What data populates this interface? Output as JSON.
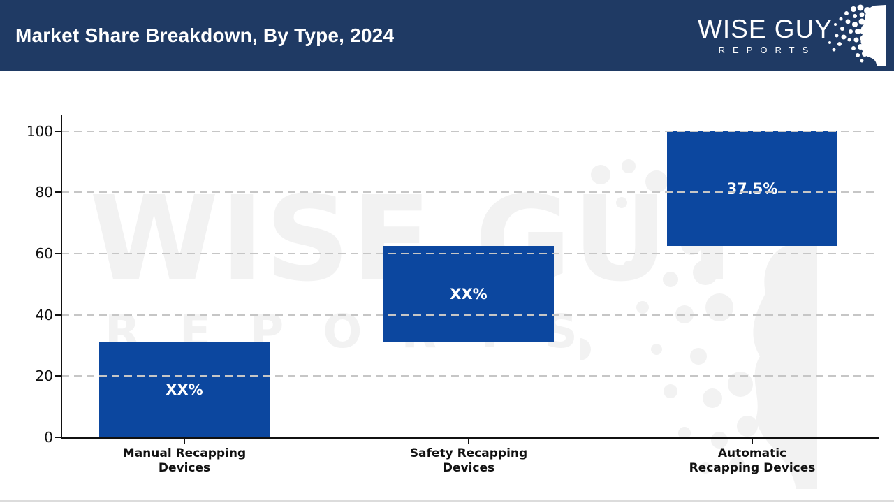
{
  "header": {
    "title": "Market Share Breakdown, By Type, 2024",
    "bg_color": "#1F3A64",
    "logo": {
      "line1": "WISE GUY",
      "line2": "REPORTS"
    }
  },
  "watermark": {
    "line1": "WISE GUY",
    "line2": "REPORTS"
  },
  "chart_data": {
    "type": "bar",
    "variant": "waterfall-stacked-breakdown",
    "title": "Market Share Breakdown, By Type, 2024",
    "categories": [
      "Manual Recapping Devices",
      "Safety Recapping Devices",
      "Automatic Recapping Devices"
    ],
    "category_lines": [
      [
        "Manual Recapping",
        "Devices"
      ],
      [
        "Safety Recapping",
        "Devices"
      ],
      [
        "Automatic",
        "Recapping Devices"
      ]
    ],
    "bars": [
      {
        "category": "Manual Recapping Devices",
        "start": 0,
        "end": 31.25,
        "label": "XX%"
      },
      {
        "category": "Safety Recapping Devices",
        "start": 31.25,
        "end": 62.5,
        "label": "XX%"
      },
      {
        "category": "Automatic Recapping Devices",
        "start": 62.5,
        "end": 100,
        "label": "37.5%"
      }
    ],
    "yticks": [
      0,
      20,
      40,
      60,
      80,
      100
    ],
    "ylim": [
      0,
      100
    ],
    "grid": "horizontal dashed",
    "legend": "none",
    "bar_color": "#0C479F",
    "label_color": "#ffffff",
    "grid_color": "#c6c6c6",
    "watermark_color": "#f2f2f2"
  }
}
